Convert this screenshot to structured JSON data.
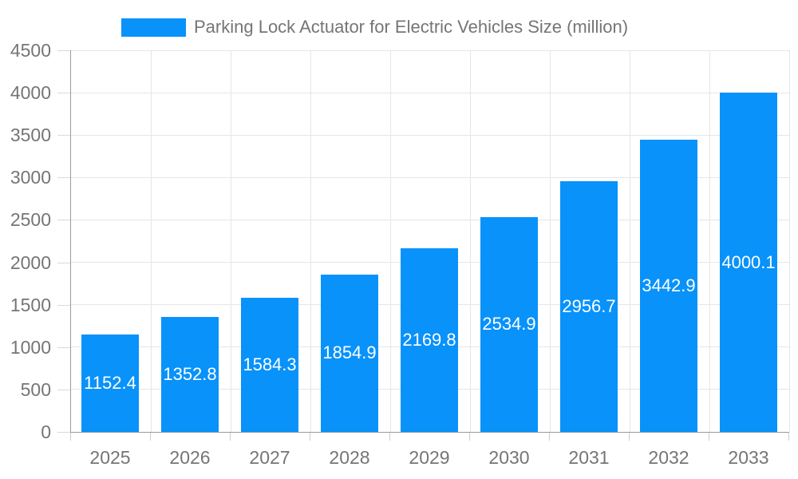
{
  "chart_data": {
    "type": "bar",
    "title": "Parking Lock Actuator for Electric Vehicles Size (million)",
    "categories": [
      "2025",
      "2026",
      "2027",
      "2028",
      "2029",
      "2030",
      "2031",
      "2032",
      "2033"
    ],
    "values": [
      1152.4,
      1352.8,
      1584.3,
      1854.9,
      2169.8,
      2534.9,
      2956.7,
      3442.9,
      4000.1
    ],
    "series": [
      {
        "name": "Parking Lock Actuator for Electric Vehicles Size (million)",
        "values": [
          1152.4,
          1352.8,
          1584.3,
          1854.9,
          2169.8,
          2534.9,
          2956.7,
          3442.9,
          4000.1
        ]
      }
    ],
    "xlabel": "",
    "ylabel": "",
    "ylim": [
      0,
      4500
    ],
    "ytick_step": 500,
    "ytick_labels": [
      "0",
      "500",
      "1000",
      "1500",
      "2000",
      "2500",
      "3000",
      "3500",
      "4000",
      "4500"
    ],
    "grid": true,
    "legend_position": "top",
    "data_labels_inside_bars": true
  },
  "legend": {
    "label": "Parking Lock Actuator for Electric Vehicles Size (million)"
  },
  "colors": {
    "bar": "#0892fa",
    "bar_label": "#ffffff",
    "axis_line": "#9a9a9a",
    "gridline": "#e6e6e6",
    "tick": "#cccccc",
    "axis_text": "#757575",
    "background": "#ffffff"
  }
}
